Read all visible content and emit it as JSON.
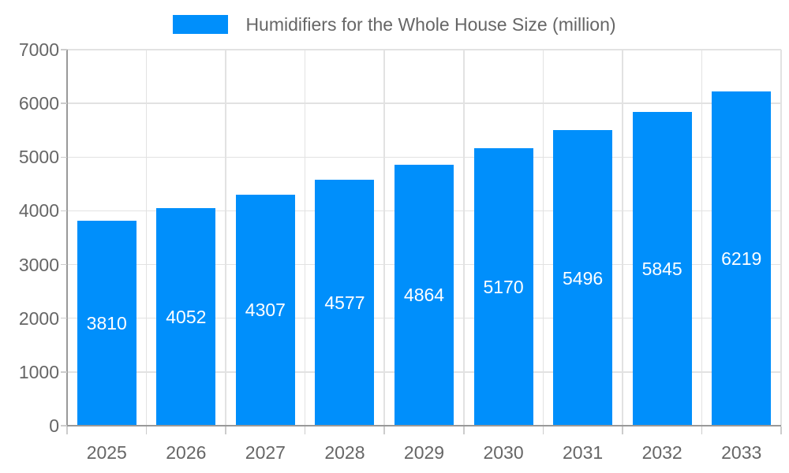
{
  "chart_data": {
    "type": "bar",
    "title": "Humidifiers for the Whole House Size (million)",
    "categories": [
      "2025",
      "2026",
      "2027",
      "2028",
      "2029",
      "2030",
      "2031",
      "2032",
      "2033"
    ],
    "values": [
      3810,
      4052,
      4307,
      4577,
      4864,
      5170,
      5496,
      5845,
      6219
    ],
    "xlabel": "",
    "ylabel": "",
    "ylim": [
      0,
      7000
    ],
    "ytick_interval": 1000,
    "ytick_labels": [
      "0",
      "1000",
      "2000",
      "3000",
      "4000",
      "5000",
      "6000",
      "7000"
    ],
    "grid": true,
    "legend_position": "top-center",
    "value_labels": "inside-center",
    "colors": {
      "bar": "#008FFB",
      "value_label": "#ffffff",
      "axis_label": "#666666",
      "title": "#666666",
      "grid": "#e2e2e2",
      "tick": "#cccccc",
      "axis_line": "#999999",
      "background": "#ffffff"
    }
  }
}
